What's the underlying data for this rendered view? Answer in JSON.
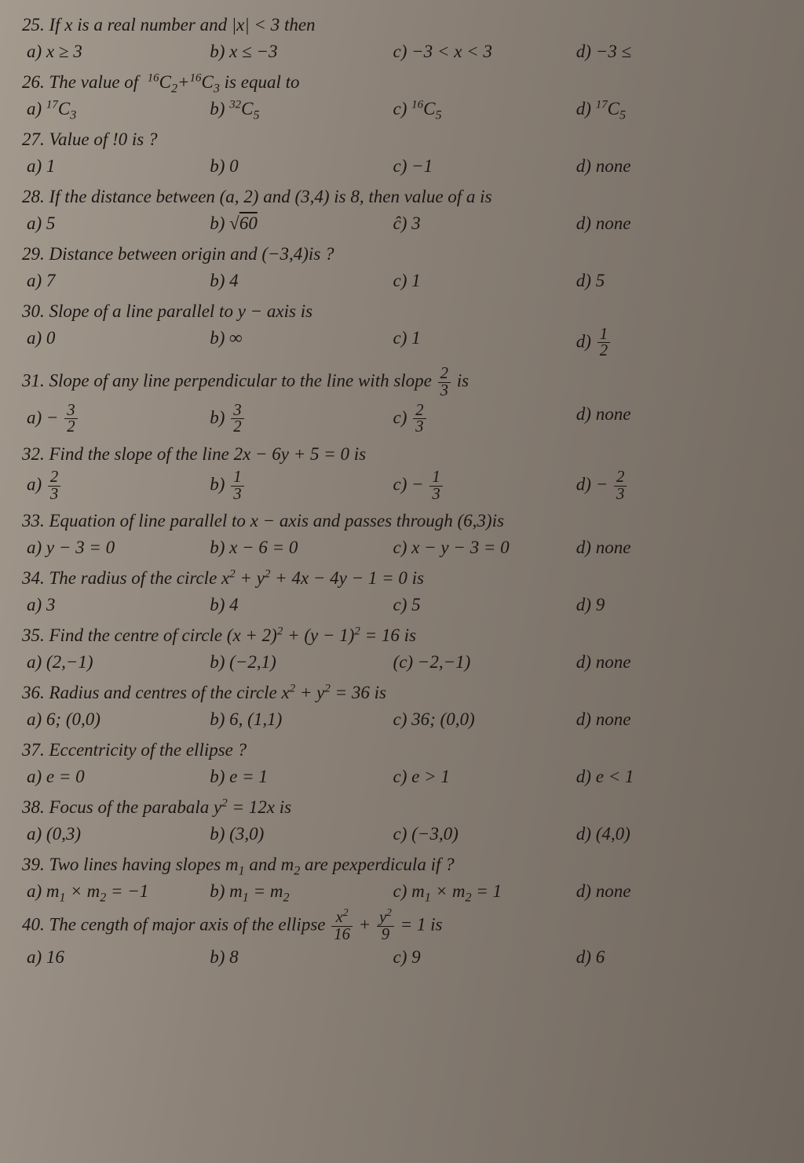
{
  "questions": [
    {
      "n": "25",
      "text": "If x is a real number and |x| < 3 then",
      "opts": [
        {
          "k": "a",
          "t": "x ≥ 3"
        },
        {
          "k": "b",
          "t": "x ≤ −3"
        },
        {
          "k": "c",
          "t": "−3 < x < 3"
        },
        {
          "k": "d",
          "t": "−3 ≤"
        }
      ],
      "w": "w25"
    },
    {
      "n": "26",
      "text_html": "The value of &nbsp;<sup>16</sup>C<sub>2</sub>+<sup>16</sup>C<sub>3</sub> is equal to",
      "opts": [
        {
          "k": "a",
          "html": "<sup>17</sup>C<sub>3</sub>"
        },
        {
          "k": "b",
          "html": "<sup>32</sup>C<sub>5</sub>"
        },
        {
          "k": "c",
          "html": "<sup>16</sup>C<sub>5</sub>"
        },
        {
          "k": "d",
          "html": "<sup>17</sup>C<sub>5</sub>"
        }
      ],
      "w": "w25"
    },
    {
      "n": "27",
      "text": "Value of !0 is ?",
      "opts": [
        {
          "k": "a",
          "t": "1"
        },
        {
          "k": "b",
          "t": "0"
        },
        {
          "k": "c",
          "t": "−1"
        },
        {
          "k": "d",
          "t": "none"
        }
      ],
      "w": "w25"
    },
    {
      "n": "28",
      "text": "If the distance between (a, 2) and (3,4) is 8, then value of a is",
      "opts": [
        {
          "k": "a",
          "t": "5"
        },
        {
          "k": "b",
          "html": "√<span class='sqrt'>60</span>"
        },
        {
          "k": "ĉ",
          "t": "3"
        },
        {
          "k": "d",
          "t": "none"
        }
      ],
      "w": "w25"
    },
    {
      "n": "29",
      "text": "Distance between origin and (−3,4)is ?",
      "opts": [
        {
          "k": "a",
          "t": "7"
        },
        {
          "k": "b",
          "t": "4"
        },
        {
          "k": "c",
          "t": "1"
        },
        {
          "k": "d",
          "t": "5"
        }
      ],
      "w": "w25"
    },
    {
      "n": "30",
      "text": "Slope of a line parallel to y − axis is",
      "opts": [
        {
          "k": "a",
          "t": "0"
        },
        {
          "k": "b",
          "t": "∞"
        },
        {
          "k": "c",
          "t": "1"
        },
        {
          "k": "d",
          "html": "<span class='frac'><span class='n'>1</span><span class='d'>2</span></span>"
        }
      ],
      "w": "w25"
    },
    {
      "n": "31",
      "text_html": "Slope of any line perpendicular to the line with slope <span class='frac'><span class='n'>2</span><span class='d'>3</span></span> is",
      "opts": [
        {
          "k": "a",
          "html": "− <span class='frac'><span class='n'>3</span><span class='d'>2</span></span>"
        },
        {
          "k": "b",
          "html": "<span class='frac'><span class='n'>3</span><span class='d'>2</span></span>"
        },
        {
          "k": "c",
          "html": "<span class='frac'><span class='n'>2</span><span class='d'>3</span></span>"
        },
        {
          "k": "d",
          "t": "none"
        }
      ],
      "w": "w25"
    },
    {
      "n": "32",
      "text": "Find the slope of the line 2x − 6y + 5 = 0 is",
      "opts": [
        {
          "k": "a",
          "html": "<span class='frac'><span class='n'>2</span><span class='d'>3</span></span>"
        },
        {
          "k": "b",
          "html": "<span class='frac'><span class='n'>1</span><span class='d'>3</span></span>"
        },
        {
          "k": "c",
          "html": "− <span class='frac'><span class='n'>1</span><span class='d'>3</span></span>"
        },
        {
          "k": "d",
          "html": "− <span class='frac'><span class='n'>2</span><span class='d'>3</span></span>"
        }
      ],
      "w": "w25"
    },
    {
      "n": "33",
      "text": "Equation of line parallel to x − axis and passes through (6,3)is",
      "opts": [
        {
          "k": "a",
          "t": "y − 3 = 0"
        },
        {
          "k": "b",
          "t": "x − 6 = 0"
        },
        {
          "k": "c",
          "t": "x − y − 3 = 0"
        },
        {
          "k": "d",
          "t": "none"
        }
      ],
      "w": "w25"
    },
    {
      "n": "34",
      "text_html": "The radius of the circle x<sup>2</sup> + y<sup>2</sup> + 4x − 4y − 1 = 0 is",
      "opts": [
        {
          "k": "a",
          "t": "3"
        },
        {
          "k": "b",
          "t": "4"
        },
        {
          "k": "c",
          "t": "5"
        },
        {
          "k": "d",
          "t": "9"
        }
      ],
      "w": "w25"
    },
    {
      "n": "35",
      "text_html": "Find the centre of circle (x + 2)<sup>2</sup> + (y − 1)<sup>2</sup> = 16 is",
      "opts": [
        {
          "k": "a",
          "t": "(2,−1)"
        },
        {
          "k": "b",
          "t": "(−2,1)"
        },
        {
          "k": "(c)",
          "t": "−2,−1)"
        },
        {
          "k": "d",
          "t": "none"
        }
      ],
      "w": "w25"
    },
    {
      "n": "36",
      "text_html": "Radius and centres of the circle x<sup>2</sup> + y<sup>2</sup> = 36 is",
      "opts": [
        {
          "k": "a",
          "t": "6; (0,0)"
        },
        {
          "k": "b",
          "t": "6, (1,1)"
        },
        {
          "k": "c",
          "t": "36; (0,0)"
        },
        {
          "k": "d",
          "t": "none"
        }
      ],
      "w": "w25"
    },
    {
      "n": "37",
      "text": "Eccentricity of the ellipse ?",
      "opts": [
        {
          "k": "a",
          "t": "e = 0"
        },
        {
          "k": "b",
          "t": "e = 1"
        },
        {
          "k": "c",
          "t": "e > 1"
        },
        {
          "k": "d",
          "t": "e < 1"
        }
      ],
      "w": "w25"
    },
    {
      "n": "38",
      "text_html": "Focus of the parabala y<sup>2</sup> = 12x is",
      "opts": [
        {
          "k": "a",
          "t": "(0,3)"
        },
        {
          "k": "b",
          "t": "(3,0)"
        },
        {
          "k": "c",
          "t": "(−3,0)"
        },
        {
          "k": "d",
          "t": "(4,0)"
        }
      ],
      "w": "w25"
    },
    {
      "n": "39",
      "text_html": "Two lines having slopes m<sub>1</sub> and m<sub>2</sub> are pexperdicula if ?",
      "opts": [
        {
          "k": "a",
          "html": "m<sub>1</sub> × m<sub>2</sub> = −1"
        },
        {
          "k": "b",
          "html": "m<sub>1</sub> = m<sub>2</sub>"
        },
        {
          "k": "c",
          "html": "m<sub>1</sub> × m<sub>2</sub> = 1"
        },
        {
          "k": "d",
          "t": "none"
        }
      ],
      "w": "w25"
    },
    {
      "n": "40",
      "text_html": "The cength of major axis of the ellipse <span class='frac'><span class='n'>x<sup>2</sup></span><span class='d'>16</span></span> + <span class='frac'><span class='n'>y<sup>2</sup></span><span class='d'>9</span></span> = 1 is",
      "opts": [
        {
          "k": "a",
          "t": "16"
        },
        {
          "k": "b",
          "t": "8"
        },
        {
          "k": "c",
          "t": "9"
        },
        {
          "k": "d",
          "t": "6"
        }
      ],
      "w": "w25"
    }
  ]
}
